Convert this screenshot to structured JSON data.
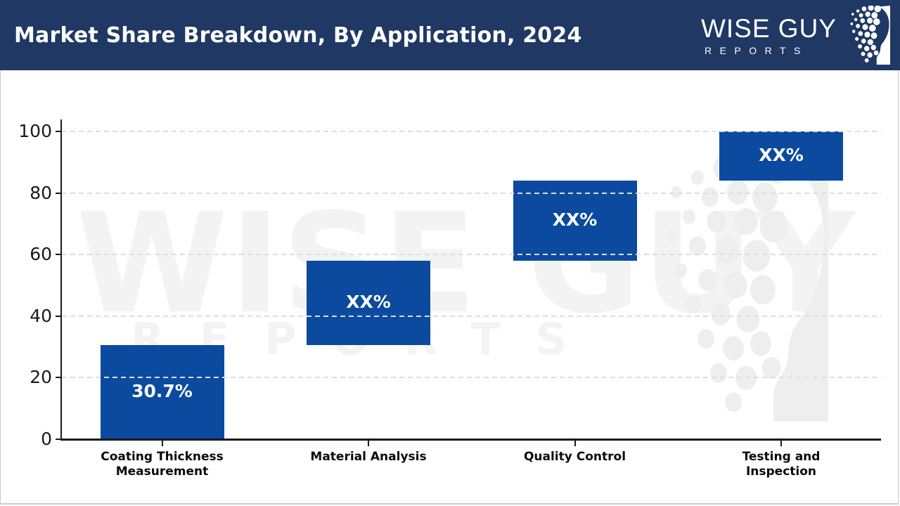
{
  "header": {
    "title": "Market Share Breakdown, By Application, 2024",
    "bg_color": "#1f3864",
    "logo": {
      "wordmark": "WISE GUY",
      "subtext": "REPORTS"
    }
  },
  "watermark": {
    "wordmark": "WISE GUY",
    "subtext": "REPORTS"
  },
  "chart_data": {
    "type": "bar",
    "subtype": "waterfall",
    "title": "Market Share Breakdown, By Application, 2024",
    "categories": [
      "Coating Thickness Measurement",
      "Material Analysis",
      "Quality Control",
      "Testing and Inspection"
    ],
    "category_lines": [
      [
        "Coating Thickness",
        "Measurement"
      ],
      [
        "Material Analysis"
      ],
      [
        "Quality Control"
      ],
      [
        "Testing and",
        "Inspection"
      ]
    ],
    "bars": [
      {
        "category": "Coating Thickness Measurement",
        "label": "30.7%",
        "start": 0,
        "end": 30.7
      },
      {
        "category": "Material Analysis",
        "label": "XX%",
        "start": 30.7,
        "end": 58
      },
      {
        "category": "Quality Control",
        "label": "XX%",
        "start": 58,
        "end": 84
      },
      {
        "category": "Testing and Inspection",
        "label": "XX%",
        "start": 84,
        "end": 100
      }
    ],
    "y_ticks": [
      0,
      20,
      40,
      60,
      80,
      100
    ],
    "ylim": [
      0,
      100
    ],
    "xlabel": "",
    "ylabel": "",
    "bar_color": "#0b4a9e",
    "grid": {
      "horizontal": true,
      "style": "dashed",
      "drawn_over_bars": true
    },
    "legend": "none"
  }
}
